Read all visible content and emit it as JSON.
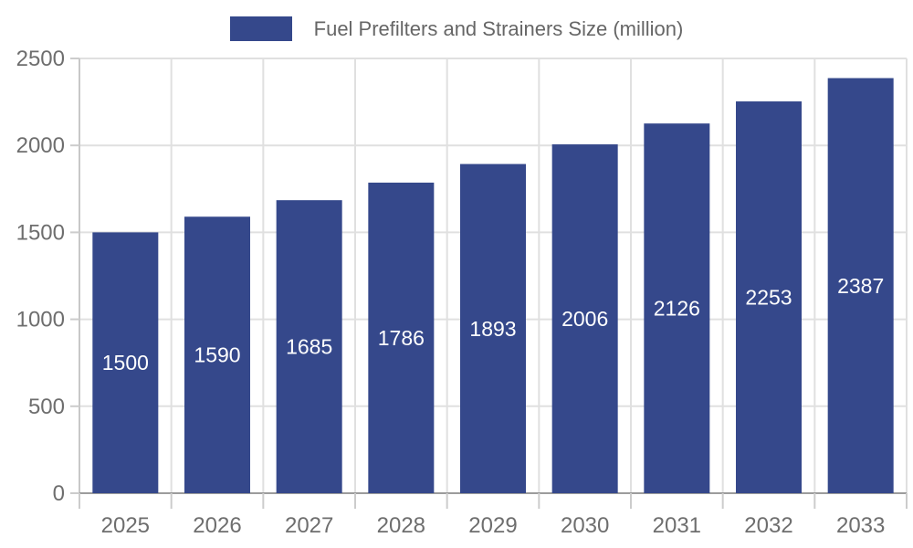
{
  "legend": {
    "label": "Fuel Prefilters and Strainers Size (million)",
    "swatch_color": "#35488b"
  },
  "chart_data": {
    "type": "bar",
    "title": "Fuel Prefilters and Strainers Size (million)",
    "series_name": "Fuel Prefilters and Strainers Size (million)",
    "categories": [
      "2025",
      "2026",
      "2027",
      "2028",
      "2029",
      "2030",
      "2031",
      "2032",
      "2033"
    ],
    "values": [
      1500,
      1590,
      1685,
      1786,
      1893,
      2006,
      2126,
      2253,
      2387
    ],
    "xlabel": "",
    "ylabel": "",
    "ylim": [
      0,
      2500
    ],
    "y_ticks": [
      0,
      500,
      1000,
      1500,
      2000,
      2500
    ],
    "grid": true,
    "legend_position": "top-center",
    "value_labels": "inside-center",
    "colors": {
      "bar": "#35488b",
      "value_label": "#ffffff",
      "grid_line": "#e0e0e0",
      "axis_line": "#c8c8c8",
      "baseline": "#9c9c9c",
      "tick": "#cccccc",
      "axis_text": "#6e6e6e",
      "legend_text": "#666666"
    }
  }
}
